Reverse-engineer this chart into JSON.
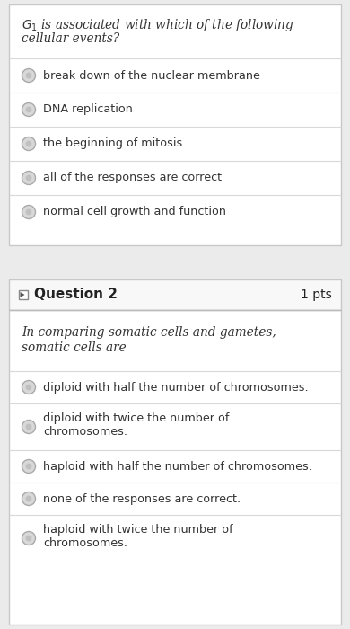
{
  "bg_color": "#ebebeb",
  "box_bg": "#ffffff",
  "box_border": "#c8c8c8",
  "text_color": "#333333",
  "gray_text": "#888888",
  "line_color": "#d8d8d8",
  "question1": {
    "q_line1": "$G_1$ is associated with which of the following",
    "q_line2": "cellular events?",
    "options": [
      "break down of the nuclear membrane",
      "DNA replication",
      "the beginning of mitosis",
      "all of the responses are correct",
      "normal cell growth and function"
    ]
  },
  "question2": {
    "header": "Question 2",
    "pts": "1 pts",
    "q_line1": "In comparing somatic cells and gametes,",
    "q_line2": "somatic cells are",
    "options": [
      [
        "diploid with half the number of chromosomes.",
        false
      ],
      [
        "diploid with twice the number of",
        true
      ],
      [
        "haploid with half the number of chromosomes.",
        false
      ],
      [
        "none of the responses are correct.",
        false
      ],
      [
        "haploid with twice the number of",
        true
      ]
    ],
    "options_line2": [
      "",
      "chromosomes.",
      "",
      "",
      "chromosomes."
    ]
  }
}
